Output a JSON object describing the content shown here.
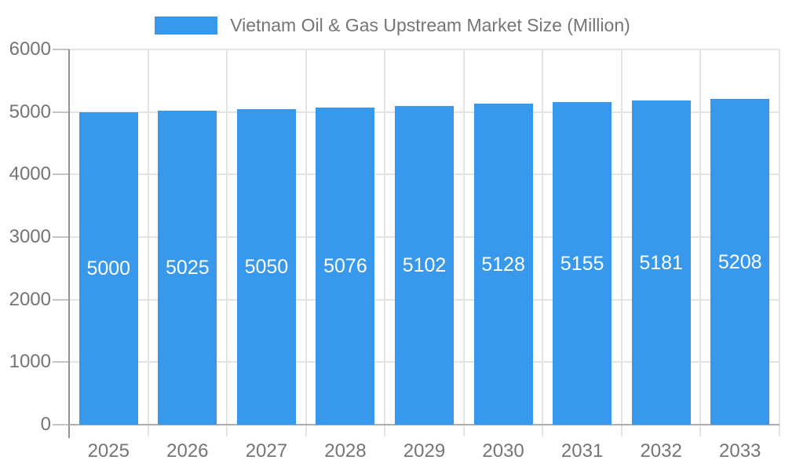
{
  "chart_data": {
    "type": "bar",
    "title": "Vietnam Oil & Gas Upstream Market Size (Million)",
    "categories": [
      "2025",
      "2026",
      "2027",
      "2028",
      "2029",
      "2030",
      "2031",
      "2032",
      "2033"
    ],
    "values": [
      5000,
      5025,
      5050,
      5076,
      5102,
      5128,
      5155,
      5181,
      5208
    ],
    "xlabel": "",
    "ylabel": "",
    "ylim": [
      0,
      6000
    ],
    "ytick_step": 1000,
    "ytick_labels": [
      "0",
      "1000",
      "2000",
      "3000",
      "4000",
      "5000",
      "6000"
    ],
    "grid": true,
    "legend_position": "top",
    "bar_color": "#3899ec",
    "bar_label_color": "#ffffff",
    "axis_label_color": "#757575",
    "legend_text_color": "#757575",
    "gridline_color": "#e4e4e4",
    "ytick_color": "#c4c4c4",
    "yaxis_line_color": "#919191",
    "xaxis_line_color": "#adadad",
    "background_color": "#ffffff"
  }
}
